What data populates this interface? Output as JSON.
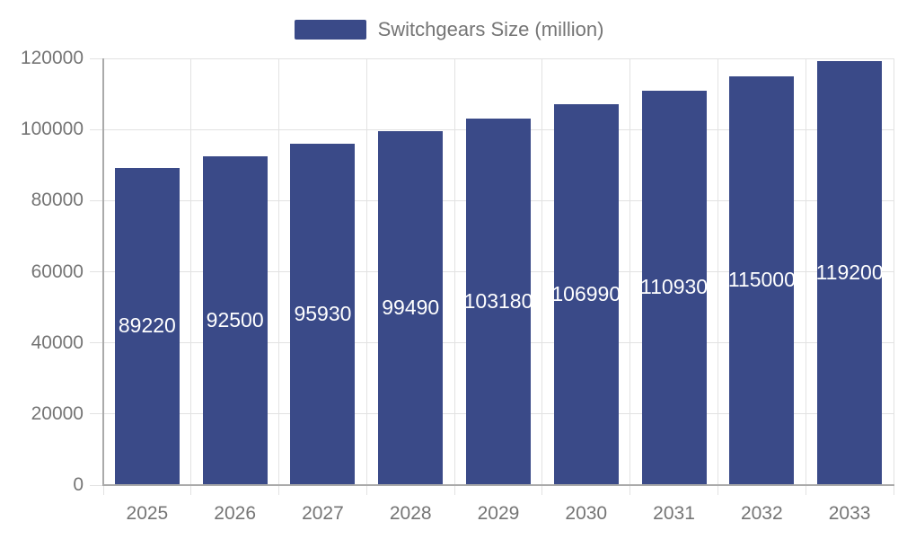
{
  "chart_data": {
    "type": "bar",
    "title": "Switchgears Size (million)",
    "series_name": "Switchgears Size (million)",
    "categories": [
      "2025",
      "2026",
      "2027",
      "2028",
      "2029",
      "2030",
      "2031",
      "2032",
      "2033"
    ],
    "values": [
      89220,
      92500,
      95930,
      99490,
      103180,
      106990,
      110930,
      115000,
      119200
    ],
    "xlabel": "",
    "ylabel": "",
    "ylim": [
      0,
      120000
    ],
    "yticks": [
      0,
      20000,
      40000,
      60000,
      80000,
      100000,
      120000
    ],
    "grid": true,
    "legend_position": "top-center",
    "value_labels_position": "inside-center",
    "colors": {
      "bar": "#3A4A88",
      "axis_line": "#aaaaaa",
      "grid_line": "#e2e2e2",
      "text": "#757575",
      "value_label": "#ffffff",
      "background": "#ffffff"
    }
  }
}
